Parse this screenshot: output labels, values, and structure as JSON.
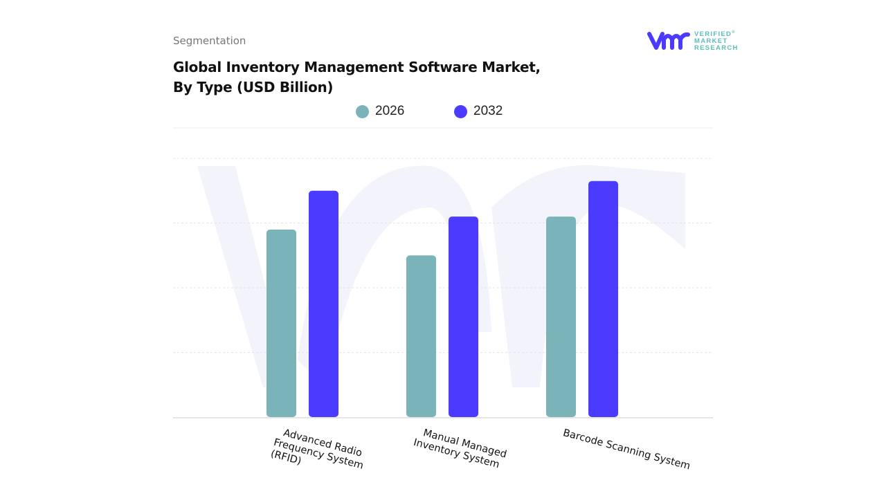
{
  "header": {
    "section": "Segmentation",
    "title_line1": "Global Inventory Management Software Market,",
    "title_line2": "By Type (USD Billion)"
  },
  "logo": {
    "line1": "VERIFIED",
    "line2": "MARKET",
    "line3": "RESEARCH",
    "registered": "®"
  },
  "colors": {
    "s2026": "#7ab4b8",
    "s2032": "#4b3bff",
    "grid": "#e3e3e3",
    "watermark": "#f2f3fb"
  },
  "chart_data": {
    "type": "bar",
    "title": "Global Inventory Management Software Market, By Type (USD Billion)",
    "categories": [
      [
        "Advanced Radio",
        "Frequency System",
        "(RFID)"
      ],
      [
        "Manual Managed",
        "Inventory System"
      ],
      [
        "Barcode Scanning System"
      ]
    ],
    "series": [
      {
        "name": "2026",
        "values": [
          2.9,
          2.5,
          3.1
        ]
      },
      {
        "name": "2032",
        "values": [
          3.5,
          3.1,
          3.65
        ]
      }
    ],
    "ylim": [
      0,
      4
    ],
    "y_tick_labels_shown": false,
    "grid": true,
    "legend_position": "top-center"
  }
}
